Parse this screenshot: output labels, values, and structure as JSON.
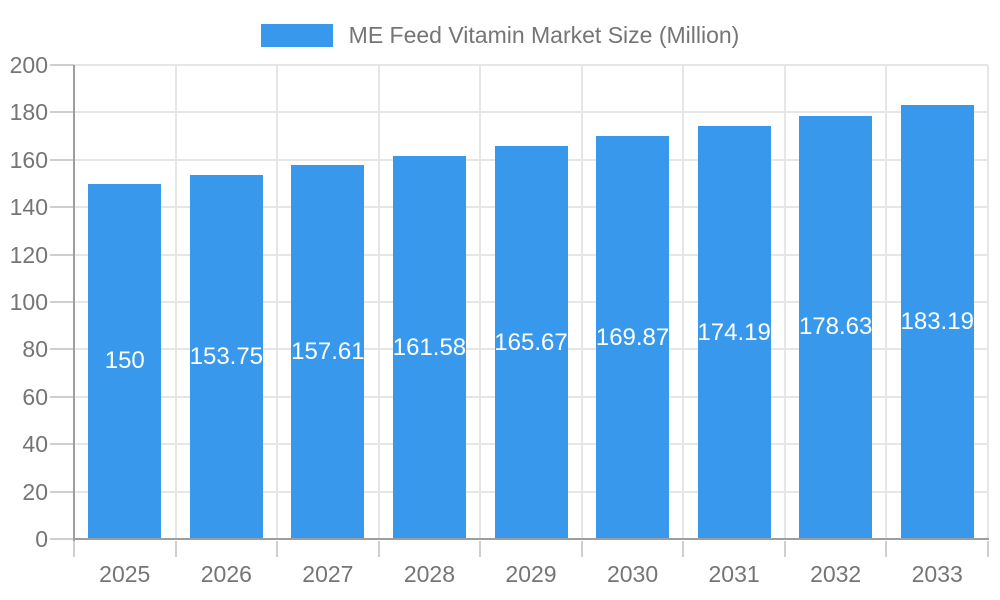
{
  "chart_data": {
    "type": "bar",
    "title": "ME Feed Vitamin Market Size (Million)",
    "legend": "ME Feed Vitamin Market Size (Million)",
    "legend_position": "top-center",
    "categories": [
      "2025",
      "2026",
      "2027",
      "2028",
      "2029",
      "2030",
      "2031",
      "2032",
      "2033"
    ],
    "values": [
      150,
      153.75,
      157.61,
      161.58,
      165.67,
      169.87,
      174.19,
      178.63,
      183.19
    ],
    "value_labels": [
      "150",
      "153.75",
      "157.61",
      "161.58",
      "165.67",
      "169.87",
      "174.19",
      "178.63",
      "183.19"
    ],
    "xlabel": "",
    "ylabel": "",
    "ylim": [
      0,
      200
    ],
    "ytick_step": 20,
    "yticks": [
      "0",
      "20",
      "40",
      "60",
      "80",
      "100",
      "120",
      "140",
      "160",
      "180",
      "200"
    ],
    "grid": true,
    "colors": {
      "bar": "#3899EC",
      "axis": "#9E9E9E",
      "grid": "#E6E6E6",
      "tick": "#CFCFCF",
      "text": "#757575",
      "bar_label": "#FFFFFF",
      "background": "#FFFFFF"
    }
  }
}
